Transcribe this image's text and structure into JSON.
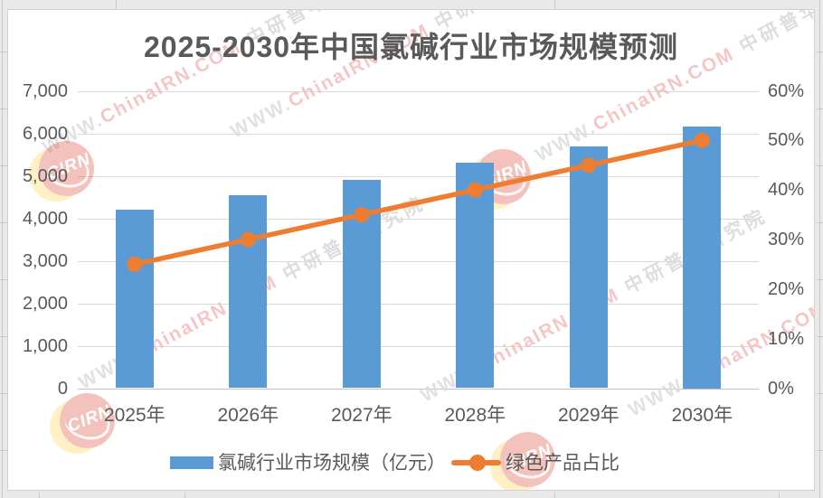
{
  "chart_data": {
    "type": "combo",
    "title": "2025-2030年中国氯碱行业市场规模预测",
    "categories": [
      "2025年",
      "2026年",
      "2027年",
      "2028年",
      "2029年",
      "2030年"
    ],
    "series": [
      {
        "name": "氯碱行业市场规模（亿元）",
        "type": "bar",
        "axis": "left",
        "color": "#5B9BD5",
        "values": [
          4200,
          4550,
          4900,
          5300,
          5700,
          6170
        ]
      },
      {
        "name": "绿色产品占比",
        "type": "line",
        "axis": "right",
        "color": "#ED7D31",
        "values": [
          25,
          30,
          35,
          40,
          45,
          50
        ]
      }
    ],
    "left_axis": {
      "min": 0,
      "max": 7000,
      "ticks": [
        "7,000",
        "6,000",
        "5,000",
        "4,000",
        "3,000",
        "2,000",
        "1,000",
        "0"
      ]
    },
    "right_axis": {
      "min": 0,
      "max": 60,
      "unit": "%",
      "ticks": [
        "60%",
        "50%",
        "40%",
        "30%",
        "20%",
        "10%",
        "0%"
      ]
    },
    "grid": true,
    "legend_position": "bottom"
  },
  "watermark": {
    "prefix": "WWW.",
    "domain": "ChinaIRN.COM",
    "cn": "中研普华研究院",
    "logo": "CIRN"
  },
  "colors": {
    "bar": "#5B9BD5",
    "line": "#ED7D31",
    "grid": "#D9D9D9",
    "axis_text": "#595959",
    "title_text": "#595959"
  }
}
